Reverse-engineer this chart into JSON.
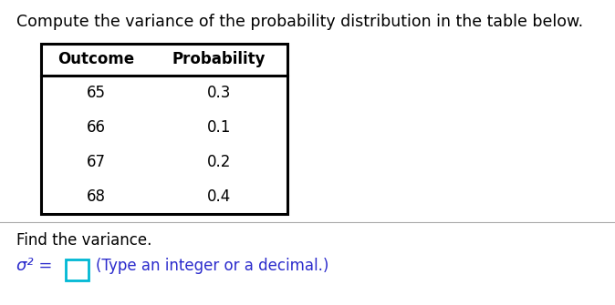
{
  "title": "Compute the variance of the probability distribution in the table below.",
  "table_headers": [
    "Outcome",
    "Probability"
  ],
  "table_rows": [
    [
      "65",
      "0.3"
    ],
    [
      "66",
      "0.1"
    ],
    [
      "67",
      "0.2"
    ],
    [
      "68",
      "0.4"
    ]
  ],
  "find_text": "Find the variance.",
  "hint_text": "(Type an integer or a decimal.)",
  "bg_color": "#ffffff",
  "text_color": "#000000",
  "hint_color": "#2b2bcc",
  "box_border_color": "#00b8d4",
  "divider_color": "#aaaaaa",
  "title_fontsize": 12.5,
  "body_fontsize": 12,
  "table_fontsize": 12,
  "fig_width": 6.74,
  "fig_height": 3.35,
  "dpi": 100
}
